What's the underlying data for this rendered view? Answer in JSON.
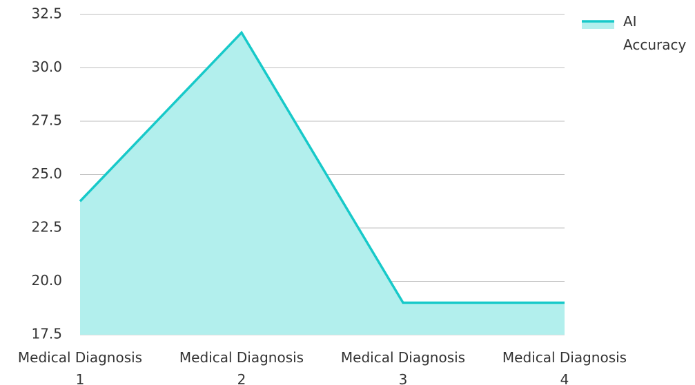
{
  "chart_data": {
    "type": "area",
    "title": "",
    "xlabel": "",
    "ylabel": "",
    "categories": [
      [
        "Medical Diagnosis",
        "1"
      ],
      [
        "Medical Diagnosis",
        "2"
      ],
      [
        "Medical Diagnosis",
        "3"
      ],
      [
        "Medical Diagnosis",
        "4"
      ]
    ],
    "series": [
      {
        "name": "AI Accuracy",
        "legend_lines": [
          "AI",
          "Accuracy"
        ],
        "values": [
          23.75,
          31.65,
          19.0,
          19.0
        ]
      }
    ],
    "ylim": [
      17.5,
      32.5
    ],
    "yticks": [
      "17.5",
      "20.0",
      "22.5",
      "25.0",
      "27.5",
      "30.0",
      "32.5"
    ],
    "grid": true,
    "legend_position": "top-right",
    "colors": {
      "line": "#17c9c9",
      "fill": "#b2efed",
      "grid": "#bdbdbd"
    }
  }
}
